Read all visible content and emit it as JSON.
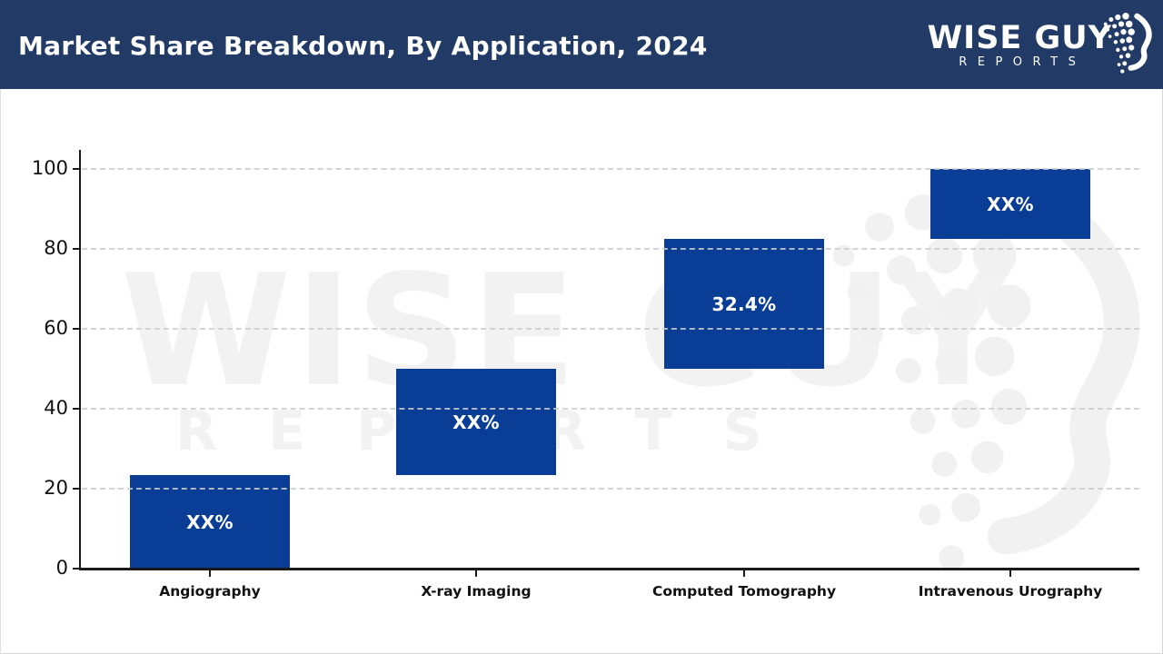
{
  "header": {
    "title": "Market Share Breakdown, By Application, 2024",
    "brand": {
      "line1": "WISE GUY",
      "line2": "REPORTS"
    }
  },
  "watermark": {
    "line1": "WISE GUY",
    "line2": "REPORTS"
  },
  "icons": {
    "brand_head": "dotted-face-profile",
    "watermark_head": "dotted-face-profile"
  },
  "colors": {
    "header_bg": "#213a66",
    "bar": "#0a3e96",
    "axis": "#1a1a1a",
    "gridline": "#d9d9d9",
    "watermark": "#f2f2f2",
    "title_text": "#ffffff",
    "bar_label_text": "#ffffff"
  },
  "chart_data": {
    "type": "bar",
    "subtype": "waterfall",
    "title": "Market Share Breakdown, By Application, 2024",
    "xlabel": "",
    "ylabel": "",
    "ylim": [
      0,
      100
    ],
    "yticks": [
      0,
      20,
      40,
      60,
      80,
      100
    ],
    "grid": "horizontal-dashed",
    "legend": "none",
    "bar_color": "#0a3e96",
    "categories": [
      "Angiography",
      "X-ray Imaging",
      "Computed Tomography",
      "Intravenous Urography"
    ],
    "series": [
      {
        "name": "Market Share (%)",
        "segments": [
          {
            "category": "Angiography",
            "start": 0,
            "end": 23.4,
            "label": "XX%"
          },
          {
            "category": "X-ray Imaging",
            "start": 23.4,
            "end": 50.0,
            "label": "XX%"
          },
          {
            "category": "Computed Tomography",
            "start": 50.0,
            "end": 82.4,
            "label": "32.4%"
          },
          {
            "category": "Intravenous Urography",
            "start": 82.4,
            "end": 100,
            "label": "XX%"
          }
        ]
      }
    ]
  }
}
